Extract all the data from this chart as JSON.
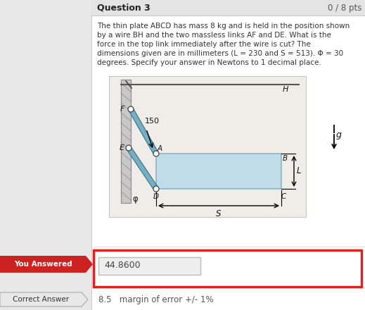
{
  "title": "Question 3",
  "pts": "0 / 8 pts",
  "question_line1": "The thin plate ABCD has mass 8 kg and is held in the position shown",
  "question_line2": "by a wire BH and the two massless links AF and DE. What is the",
  "question_line3": "force in the top link immediately after the wire is cut? The",
  "question_line4": "dimensions given are in millimeters (L = 230 and S = 513). Φ = 30",
  "question_line5": "degrees. Specify your answer in Newtons to 1 decimal place.",
  "you_answered_label": "You Answered",
  "you_answered_value": "44.8600",
  "correct_answer_label": "Correct Answer",
  "correct_answer_value": "8.5   margin of error +/- 1%",
  "bg_color": "#e8e8e8",
  "panel_bg": "#ffffff",
  "title_bar_color": "#e0e0e0",
  "plate_fill": "#b8d8ea",
  "plate_edge": "#7aafc0",
  "link_fill": "#7aafc0",
  "link_edge": "#3a7a9a",
  "wall_fill": "#c8c8c8",
  "wall_hatch_color": "#999999",
  "diagram_bg": "#f0ede8",
  "red_btn_color": "#cc2222",
  "correct_btn_fill": "#e8e8e8",
  "correct_btn_edge": "#aaaaaa",
  "answer_box_edge": "#dd2222",
  "input_box_fill": "#eeeeee",
  "input_box_edge": "#bbbbbb",
  "dim_150": "150",
  "dim_S": "S",
  "dim_L": "L",
  "label_F": "F",
  "label_E": "E",
  "label_A": "A",
  "label_D": "D",
  "label_B": "B",
  "label_C": "C",
  "label_H": "H",
  "label_g": "g",
  "label_phi": "φ"
}
